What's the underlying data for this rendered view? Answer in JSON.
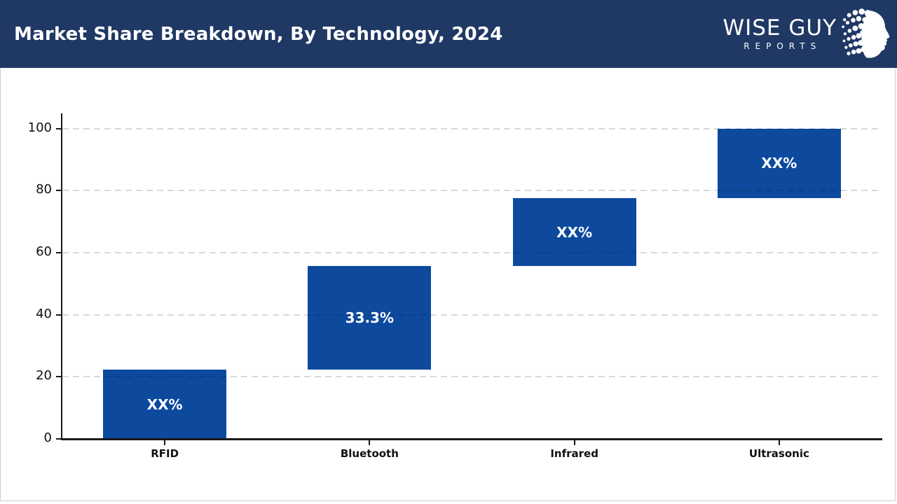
{
  "header": {
    "title": "Market Share Breakdown, By Technology, 2024",
    "logo": {
      "line1": "WISE GUY",
      "line2": "REPORTS"
    }
  },
  "watermark": {
    "line1": "WISE GUY",
    "line2": "REPORTS"
  },
  "colors": {
    "header_bg": "#1f3864",
    "bar": "#0d4a9e",
    "bar_label": "#ffffff",
    "gridline": "#d9d9d9",
    "watermark": "#f0f0f0"
  },
  "chart_data": {
    "type": "bar",
    "subtype": "floating-waterfall",
    "title": "Market Share Breakdown, By Technology, 2024",
    "categories": [
      "RFID",
      "Bluetooth",
      "Infrared",
      "Ultrasonic"
    ],
    "bars": [
      {
        "category": "RFID",
        "start": 0,
        "end": 22.3,
        "value": 22.3,
        "label": "XX%"
      },
      {
        "category": "Bluetooth",
        "start": 22.3,
        "end": 55.6,
        "value": 33.3,
        "label": "33.3%"
      },
      {
        "category": "Infrared",
        "start": 55.6,
        "end": 77.7,
        "value": 22.1,
        "label": "XX%"
      },
      {
        "category": "Ultrasonic",
        "start": 77.7,
        "end": 100,
        "value": 22.3,
        "label": "XX%"
      }
    ],
    "xlabel": "",
    "ylabel": "",
    "ylim": [
      0,
      104.8
    ],
    "yticks": [
      0,
      20,
      40,
      60,
      80,
      100
    ],
    "grid": "horizontal-dashed",
    "legend": "none"
  }
}
